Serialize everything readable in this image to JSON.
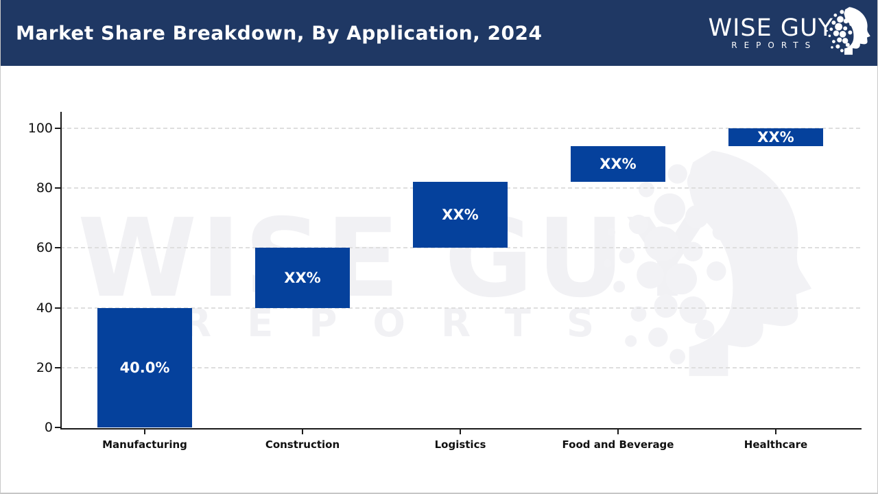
{
  "header": {
    "title": "Market Share Breakdown, By Application, 2024",
    "logo": {
      "line1": "WISE GUY",
      "line2": "REPORTS"
    }
  },
  "watermark": {
    "line1": "WISE GUY",
    "line2": "REPORTS"
  },
  "colors": {
    "header_bg": "#1f3864",
    "bar": "#05419c",
    "grid": "#dedede",
    "axis": "#1a1a1a",
    "bar_label": "#ffffff",
    "watermark": "#f1f1f4"
  },
  "chart_data": {
    "type": "bar",
    "variant": "waterfall",
    "title": "Market Share Breakdown, By Application, 2024",
    "categories": [
      "Manufacturing",
      "Construction",
      "Logistics",
      "Food and Beverage",
      "Healthcare"
    ],
    "values": [
      40,
      20,
      22,
      12,
      6
    ],
    "cumulative_start": [
      0,
      40,
      60,
      82,
      94
    ],
    "cumulative_end": [
      40,
      60,
      82,
      94,
      100
    ],
    "bar_labels": [
      "40.0%",
      "XX%",
      "XX%",
      "XX%",
      "XX%"
    ],
    "xlabel": "",
    "ylabel": "",
    "ylim": [
      0,
      105
    ],
    "yticks": [
      0,
      20,
      40,
      60,
      80,
      100
    ],
    "grid": "horizontal-dashed",
    "legend": false
  }
}
